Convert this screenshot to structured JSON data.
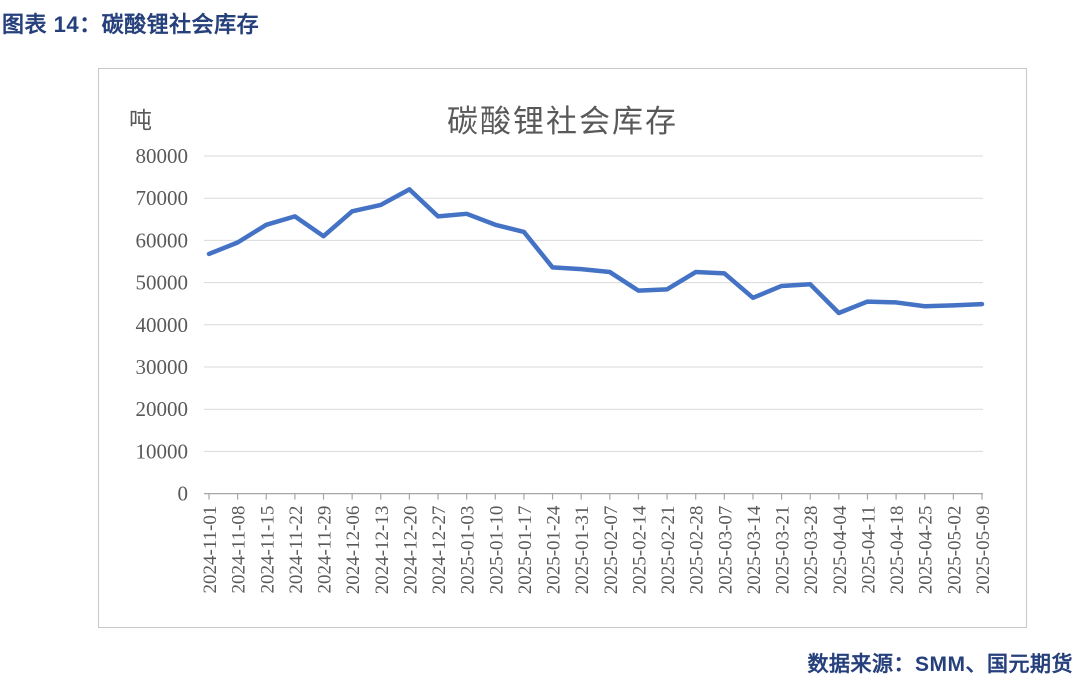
{
  "page": {
    "figure_caption": "图表 14：碳酸锂社会库存",
    "source_note": "数据来源：SMM、国元期货"
  },
  "colors": {
    "accent_navy": "#26407C",
    "line_blue": "#4472C4",
    "axis_text": "#595959",
    "gridline": "#D9D9D9",
    "axis_line": "#A6A6A6",
    "border_gray": "#C9C9C9"
  },
  "chart_data": {
    "type": "line",
    "title": "碳酸锂社会库存",
    "unit_label": "吨",
    "xlabel": "",
    "ylabel": "吨",
    "ylim": [
      0,
      80000
    ],
    "ytick_interval": 10000,
    "yticks": [
      0,
      10000,
      20000,
      30000,
      40000,
      50000,
      60000,
      70000,
      80000
    ],
    "grid": "horizontal",
    "legend_position": "none",
    "line_color": "#4472C4",
    "categories": [
      "2024-11-01",
      "2024-11-08",
      "2024-11-15",
      "2024-11-22",
      "2024-11-29",
      "2024-12-06",
      "2024-12-13",
      "2024-12-20",
      "2024-12-27",
      "2025-01-03",
      "2025-01-10",
      "2025-01-17",
      "2025-01-24",
      "2025-01-31",
      "2025-02-07",
      "2025-02-14",
      "2025-02-21",
      "2025-02-28",
      "2025-03-07",
      "2025-03-14",
      "2025-03-21",
      "2025-03-28",
      "2025-04-04",
      "2025-04-11",
      "2025-04-18",
      "2025-04-25",
      "2025-05-02",
      "2025-05-09"
    ],
    "series": [
      {
        "name": "碳酸锂社会库存",
        "values": [
          56800,
          59500,
          63700,
          65700,
          61000,
          66900,
          68400,
          72100,
          65700,
          66300,
          63700,
          62000,
          53600,
          53200,
          52500,
          48100,
          48400,
          52500,
          52200,
          46400,
          49200,
          49600,
          42800,
          45500,
          45300,
          44400,
          44600,
          44900
        ]
      }
    ]
  }
}
